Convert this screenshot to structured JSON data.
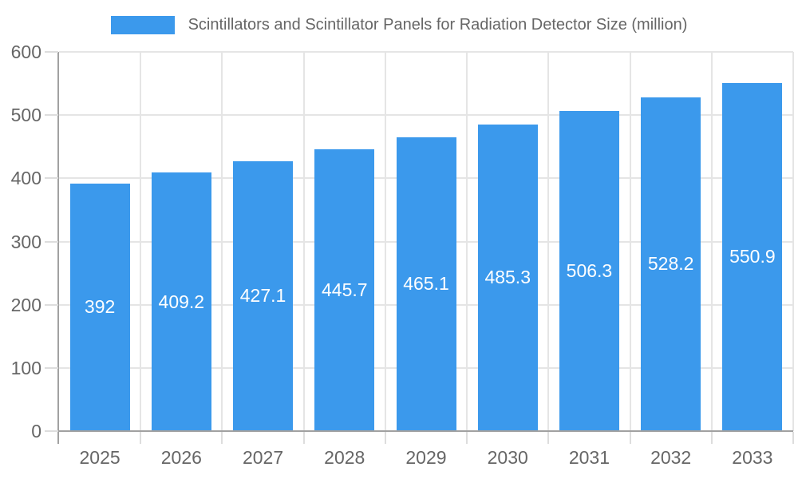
{
  "chart_data": {
    "type": "bar",
    "title": "Scintillators and Scintillator Panels for Radiation Detector Size (million)",
    "categories": [
      "2025",
      "2026",
      "2027",
      "2028",
      "2029",
      "2030",
      "2031",
      "2032",
      "2033"
    ],
    "series": [
      {
        "name": "Scintillators and Scintillator Panels for Radiation Detector Size (million)",
        "values": [
          392,
          409.2,
          427.1,
          445.7,
          465.1,
          485.3,
          506.3,
          528.2,
          550.9
        ],
        "labels": [
          "392",
          "409.2",
          "427.1",
          "445.7",
          "465.1",
          "485.3",
          "506.3",
          "528.2",
          "550.9"
        ]
      }
    ],
    "xlabel": "",
    "ylabel": "",
    "ylim": [
      0,
      600
    ],
    "yticks": [
      "0",
      "100",
      "200",
      "300",
      "400",
      "500",
      "600"
    ],
    "grid": true,
    "legend_position": "top-center",
    "value_labels_position": "center-of-bar",
    "colors": {
      "bar": "#3B99EC",
      "bar_label": "#ffffff",
      "axis_text": "#666666",
      "legend_text": "#666666",
      "grid_line": "#e5e5e5",
      "tick_line": "#dddddd",
      "axis_line": "#a1a1a1",
      "background": "#ffffff"
    }
  }
}
